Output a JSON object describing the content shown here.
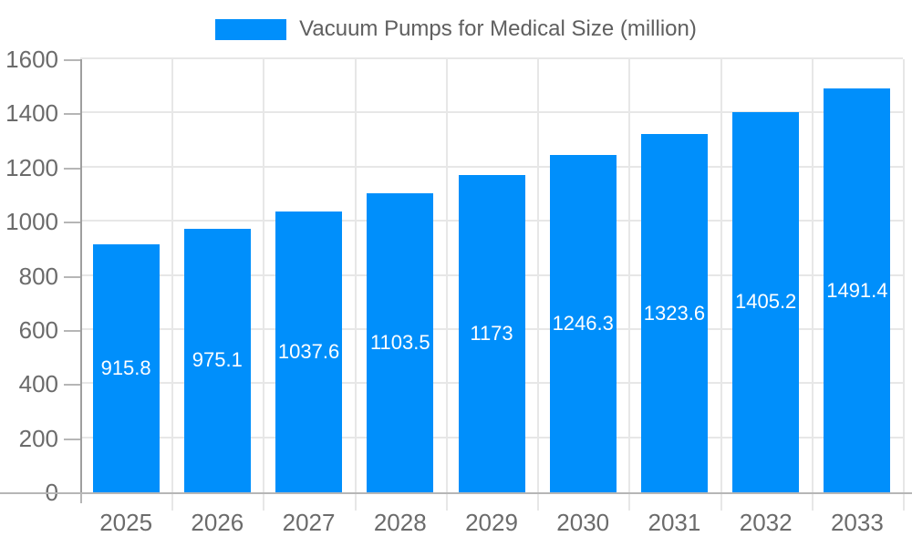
{
  "legend": {
    "series_label": "Vacuum Pumps for Medical Size (million)"
  },
  "colors": {
    "bar": "#008FFB",
    "grid": "#e7e7e7",
    "axis_line": "#b6b6b6",
    "axis_text": "#6b6b6b",
    "legend_text": "#5f5f5f",
    "bar_label_text": "#ffffff"
  },
  "chart_data": {
    "type": "bar",
    "title": "Vacuum Pumps for Medical Size (million)",
    "categories": [
      "2025",
      "2026",
      "2027",
      "2028",
      "2029",
      "2030",
      "2031",
      "2032",
      "2033"
    ],
    "values": [
      915.8,
      975.1,
      1037.6,
      1103.5,
      1173,
      1246.3,
      1323.6,
      1405.2,
      1491.4
    ],
    "bar_labels": [
      "915.8",
      "975.1",
      "1037.6",
      "1103.5",
      "1173",
      "1246.3",
      "1323.6",
      "1405.2",
      "1491.4"
    ],
    "xlabel": "",
    "ylabel": "",
    "ylim": [
      0,
      1600
    ],
    "yticks": [
      0,
      200,
      400,
      600,
      800,
      1000,
      1200,
      1400,
      1600
    ],
    "grid": true,
    "legend_position": "top",
    "series_color": "#008FFB"
  }
}
